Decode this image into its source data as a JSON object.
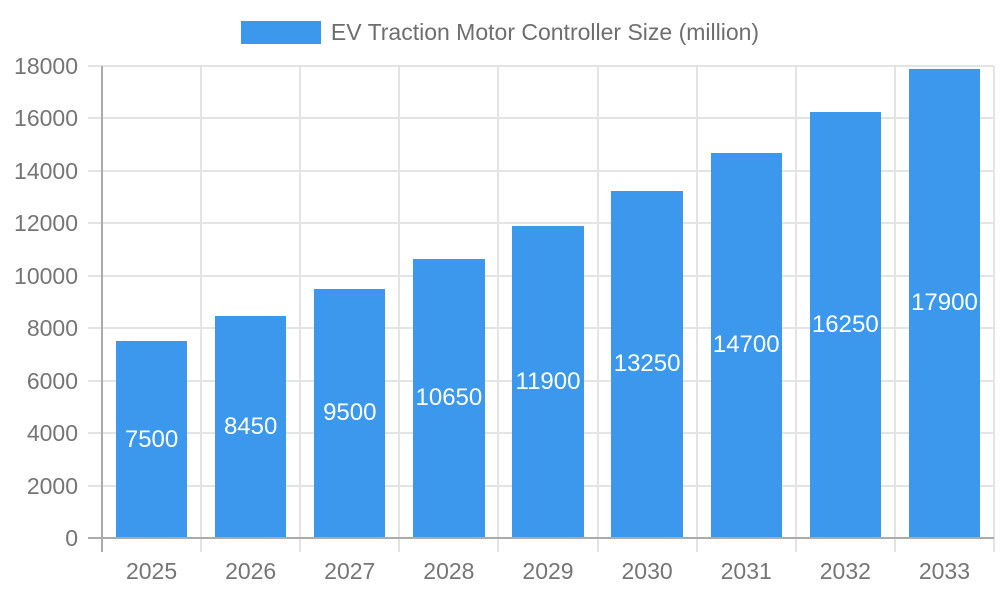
{
  "legend": {
    "position": "top",
    "items": [
      {
        "label": "EV Traction Motor Controller Size (million)",
        "color": "#3B98EC"
      }
    ]
  },
  "chart_data": {
    "type": "bar",
    "title": "",
    "xlabel": "",
    "ylabel": "",
    "categories": [
      "2025",
      "2026",
      "2027",
      "2028",
      "2029",
      "2030",
      "2031",
      "2032",
      "2033"
    ],
    "series": [
      {
        "name": "EV Traction Motor Controller Size (million)",
        "values": [
          7500,
          8450,
          9500,
          10650,
          11900,
          13250,
          14700,
          16250,
          17900
        ],
        "color": "#3B98EC"
      }
    ],
    "ylim": [
      0,
      18000
    ],
    "yticks": [
      0,
      2000,
      4000,
      6000,
      8000,
      10000,
      12000,
      14000,
      16000,
      18000
    ],
    "grid": true,
    "legend_position": "top",
    "data_labels": {
      "show": true,
      "position": "inside-center",
      "color": "#ffffff"
    }
  },
  "colors": {
    "bar": "#3B98EC",
    "bar_label": "#ffffff",
    "axis_line": "#ababab",
    "gridline": "#e4e4e4",
    "tick_label": "#757575",
    "legend_text": "#6e6e6e",
    "background": "#ffffff"
  }
}
